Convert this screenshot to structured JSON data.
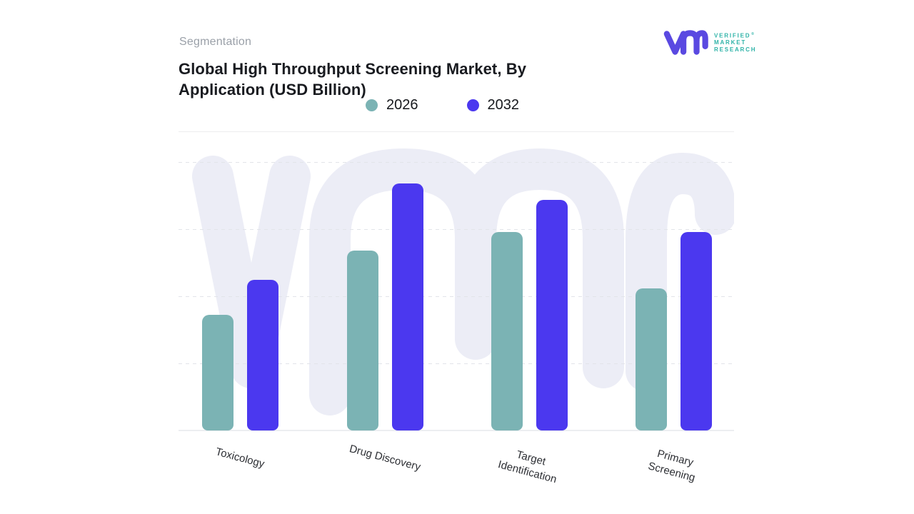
{
  "header": {
    "eyebrow": "Segmentation",
    "title_line1": "Global High Throughput Screening Market, By",
    "title_line2": "Application (USD Billion)"
  },
  "logo": {
    "glyph": "vm-monogram",
    "glyph_color": "#5a49e1",
    "word1": "VERIFIED",
    "registered_mark": "®",
    "word2": "MARKET",
    "word3": "RESEARCH",
    "text_color": "#2fb3a8"
  },
  "watermark": {
    "glyph": "vmr-monogram",
    "color": "#ecedf6"
  },
  "chart_data": {
    "type": "bar",
    "title": "Global High Throughput Screening Market, By Application (USD Billion)",
    "categories": [
      "Toxicology",
      "Drug Discovery",
      "Target Identification",
      "Primary Screening"
    ],
    "series": [
      {
        "name": "2026",
        "color": "#7bb3b4",
        "values": [
          43,
          67,
          74,
          53
        ]
      },
      {
        "name": "2032",
        "color": "#4b38ef",
        "values": [
          56,
          92,
          86,
          74
        ]
      }
    ],
    "xlabel": "",
    "ylabel": "",
    "ylim": [
      0,
      100
    ],
    "y_axis_labels_visible": false,
    "value_note": "No numeric axis labels shown in image; values estimated against the 4 dashed gridlines, top gridline = 100.",
    "gridlines": {
      "style": "dashed",
      "count": 4,
      "color": "#e2e4e9"
    },
    "legend_position": "top-center",
    "bar_colors": {
      "2026": "#7bb3b4",
      "2032": "#4b38ef"
    }
  }
}
